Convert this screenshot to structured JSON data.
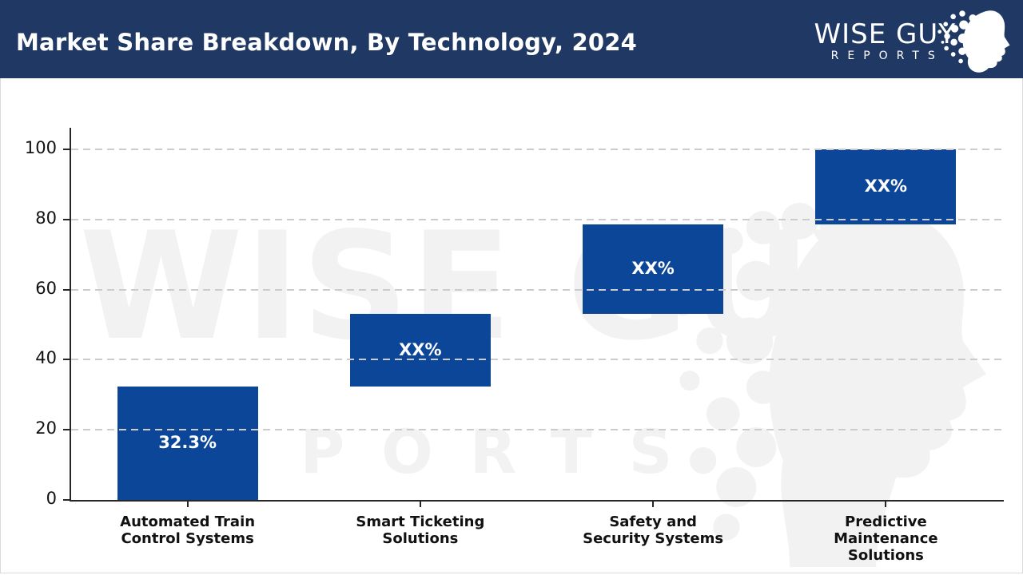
{
  "header": {
    "title": "Market Share Breakdown, By Technology, 2024",
    "logo_line1": "WISE GUY",
    "logo_line2": "REPORTS"
  },
  "watermark": {
    "line1": "WISE GUY",
    "line2": "REPORTS"
  },
  "colors": {
    "header_bg": "#1f3864",
    "bar": "#0b4699",
    "grid": "#cccccc",
    "axis": "#262626",
    "bar_label_text": "#ffffff",
    "tick_label_text": "#111111",
    "watermark": "#f2f2f2"
  },
  "chart_data": {
    "type": "bar",
    "subtype": "waterfall",
    "title": "Market Share Breakdown, By Technology, 2024",
    "categories": [
      "Automated Train Control Systems",
      "Smart Ticketing Solutions",
      "Safety and Security Systems",
      "Predictive Maintenance Solutions"
    ],
    "category_label_lines": [
      [
        "Automated Train",
        "Control Systems"
      ],
      [
        "Smart Ticketing",
        "Solutions"
      ],
      [
        "Safety and",
        "Security Systems"
      ],
      [
        "Predictive",
        "Maintenance",
        "Solutions"
      ]
    ],
    "segments": [
      {
        "start": 0,
        "end": 32.3,
        "label": "32.3%"
      },
      {
        "start": 32.3,
        "end": 53,
        "label": "XX%"
      },
      {
        "start": 53,
        "end": 78.5,
        "label": "XX%"
      },
      {
        "start": 78.5,
        "end": 100,
        "label": "XX%"
      }
    ],
    "ylim": [
      0,
      100
    ],
    "yticks": [
      0,
      20,
      40,
      60,
      80,
      100
    ],
    "xlabel": "",
    "ylabel": "",
    "grid": "horizontal-dashed",
    "legend": "none"
  }
}
